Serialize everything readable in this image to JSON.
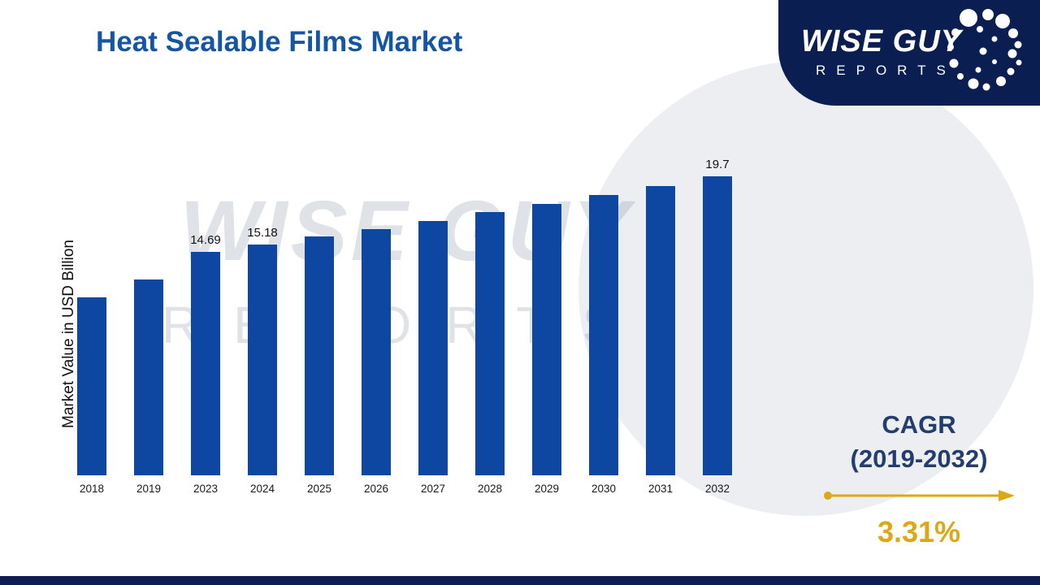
{
  "title": "Heat Sealable Films Market",
  "logo": {
    "line1": "WISE GUY",
    "line2": "REPORTS"
  },
  "watermark": {
    "line1": "WISE GUY",
    "line2": "REPORTS"
  },
  "ylabel": "Market Value in USD Billion",
  "cagr": {
    "label": "CAGR",
    "range": "(2019-2032)",
    "value": "3.31%"
  },
  "colors": {
    "bar": "#0d47a1",
    "navy": "#0a1e52",
    "gold": "#dca816",
    "title": "#1456a4"
  },
  "chart_data": {
    "type": "bar",
    "title": "Heat Sealable Films Market",
    "ylabel": "Market Value in USD Billion",
    "unit": "USD Billion",
    "categories": [
      "2018",
      "2019",
      "2023",
      "2024",
      "2025",
      "2026",
      "2027",
      "2028",
      "2029",
      "2030",
      "2031",
      "2032"
    ],
    "values": [
      11.7,
      12.9,
      14.69,
      15.18,
      15.7,
      16.2,
      16.75,
      17.3,
      17.85,
      18.45,
      19.05,
      19.7
    ],
    "data_labels": {
      "2023": "14.69",
      "2024": "15.18",
      "2032": "19.7"
    },
    "ylim": [
      0,
      21
    ],
    "grid": false,
    "legend": "none",
    "cagr_percent": 3.31,
    "cagr_range": "2019-2032"
  }
}
